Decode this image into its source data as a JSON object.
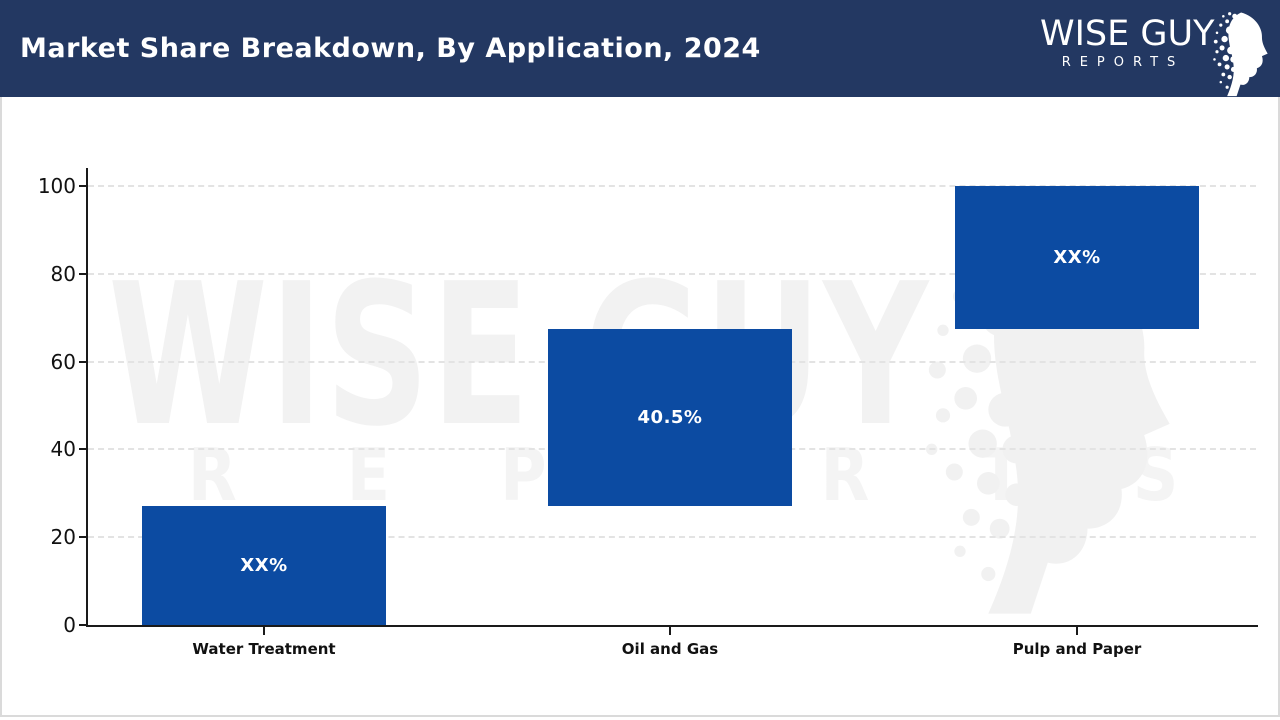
{
  "header": {
    "title": "Market Share Breakdown, By Application, 2024",
    "logo_line1": "WISE GUY",
    "logo_line2": "REPORTS"
  },
  "watermark": {
    "line1": "WISE GUY",
    "line2": "R E P O R T S"
  },
  "colors": {
    "header_bg": "#233862",
    "bar": "#0c4ba2",
    "bar_label": "#ffffff",
    "grid": "#e3e3e3",
    "axis": "#1a1a1a",
    "frame": "#dadada",
    "watermark": "#f2f2f2"
  },
  "chart_data": {
    "type": "bar",
    "subtype": "floating-stacked-percentage",
    "title": "Market Share Breakdown, By Application, 2024",
    "categories": [
      "Water Treatment",
      "Oil and Gas",
      "Pulp and Paper"
    ],
    "segments": [
      {
        "category": "Water Treatment",
        "start": 0,
        "end": 27,
        "label": "XX%"
      },
      {
        "category": "Oil and Gas",
        "start": 27,
        "end": 67.5,
        "label": "40.5%"
      },
      {
        "category": "Pulp and Paper",
        "start": 67.5,
        "end": 100,
        "label": "XX%"
      }
    ],
    "y_ticks": [
      0,
      20,
      40,
      60,
      80,
      100
    ],
    "ylim": [
      0,
      104
    ],
    "xlabel": "",
    "ylabel": "",
    "grid": "horizontal-dashed",
    "legend": "none"
  }
}
